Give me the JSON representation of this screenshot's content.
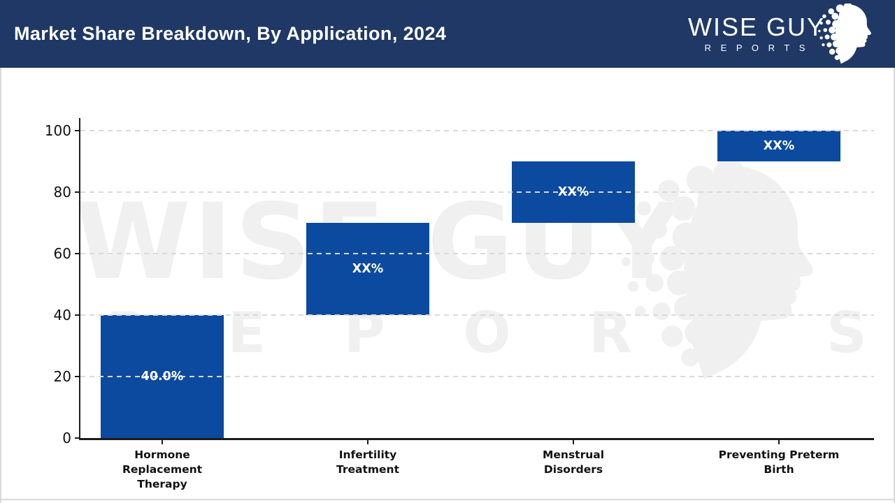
{
  "header": {
    "title": "Market Share Breakdown, By Application, 2024",
    "logo": {
      "line1": "WISE GUY",
      "line2": "R E P O R T S"
    }
  },
  "watermark": {
    "line1": "WISE GUY",
    "line2": "R E P O R T S"
  },
  "colors": {
    "header_bg": "#1f3866",
    "bar": "#0b4a9e",
    "grid": "#d9d9d9",
    "axis": "#1c1c1c",
    "watermark": "#f1f0f1",
    "value_label": "#ffffff"
  },
  "chart_data": {
    "type": "bar",
    "subtype": "waterfall-floating-segments",
    "title": "Market Share Breakdown, By Application, 2024",
    "categories": [
      [
        "Hormone",
        "Replacement",
        "Therapy"
      ],
      [
        "Infertility",
        "Treatment"
      ],
      [
        "Menstrual",
        "Disorders"
      ],
      [
        "Preventing Preterm",
        "Birth"
      ]
    ],
    "segments": [
      {
        "start": 0,
        "end": 40,
        "label": "40.0%"
      },
      {
        "start": 40,
        "end": 70,
        "label": "XX%"
      },
      {
        "start": 70,
        "end": 90,
        "label": "XX%"
      },
      {
        "start": 90,
        "end": 100,
        "label": "XX%"
      }
    ],
    "bar_color": "#0b4a9e",
    "ylim": [
      0,
      100
    ],
    "yticks": [
      0,
      20,
      40,
      60,
      80,
      100
    ],
    "grid": "horizontal-dashed",
    "legend": "none",
    "xlabel": "",
    "ylabel": ""
  }
}
